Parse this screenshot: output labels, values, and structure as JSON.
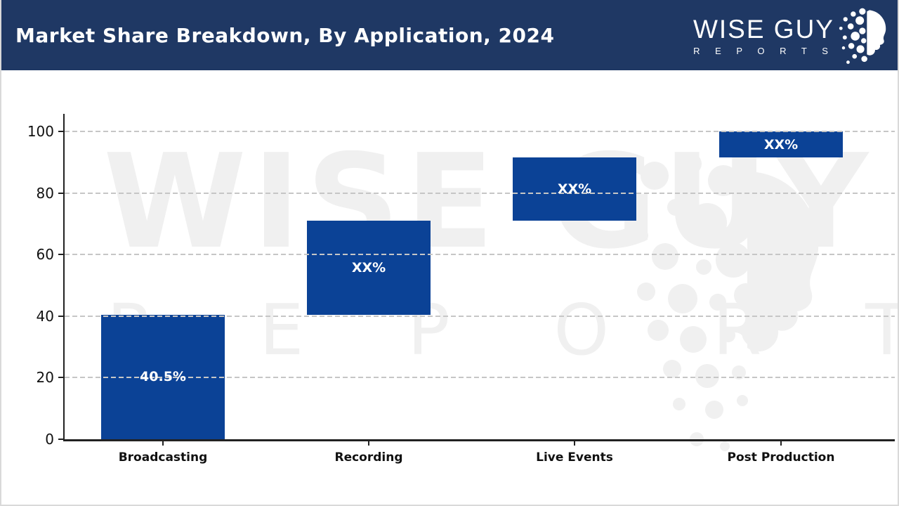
{
  "header": {
    "title": "Market Share Breakdown, By Application, 2024",
    "logo_main": "WISE GUY",
    "logo_sub": "R E P O R T S"
  },
  "watermark": {
    "main": "WISE GUY",
    "sub": "R E P O R T S"
  },
  "chart_data": {
    "type": "bar",
    "subtype": "waterfall",
    "title": "Market Share Breakdown, By Application, 2024",
    "categories": [
      "Broadcasting",
      "Recording",
      "Live Events",
      "Post Production"
    ],
    "bars": [
      {
        "category": "Broadcasting",
        "label": "40.5%",
        "start": 0,
        "end": 40.5
      },
      {
        "category": "Recording",
        "label": "XX%",
        "start": 40.5,
        "end": 71
      },
      {
        "category": "Live Events",
        "label": "XX%",
        "start": 71,
        "end": 91.5
      },
      {
        "category": "Post Production",
        "label": "XX%",
        "start": 91.5,
        "end": 100
      }
    ],
    "y_ticks": [
      0,
      20,
      40,
      60,
      80,
      100
    ],
    "ylim": [
      0,
      105
    ],
    "xlabel": "",
    "ylabel": "",
    "grid": "horizontal dashed, drawn over bars",
    "legend": "none",
    "bar_color": "#0b4296",
    "header_color": "#1f3864",
    "grid_color": "#c6c6c6"
  }
}
